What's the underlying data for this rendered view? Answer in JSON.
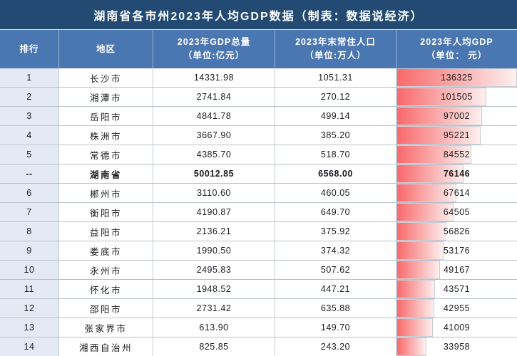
{
  "title": "湖南省各市州2023年人均GDP数据（制表：数据说经济）",
  "table": {
    "columns": [
      {
        "label": "排行",
        "unit": ""
      },
      {
        "label": "地区",
        "unit": ""
      },
      {
        "label": "2023年GDP总量",
        "unit": "（单位:亿元）"
      },
      {
        "label": "2023年末常住人口",
        "unit": "（单位:万人）"
      },
      {
        "label": "2023年人均GDP",
        "unit": "（单位： 元）"
      }
    ],
    "per_capita_max": 136325,
    "rows": [
      {
        "rank": "1",
        "region": "长沙市",
        "gdp": "14331.98",
        "population": "1051.31",
        "per_capita": 136325,
        "emphasis": false
      },
      {
        "rank": "2",
        "region": "湘潭市",
        "gdp": "2741.84",
        "population": "270.12",
        "per_capita": 101505,
        "emphasis": false
      },
      {
        "rank": "3",
        "region": "岳阳市",
        "gdp": "4841.78",
        "population": "499.14",
        "per_capita": 97002,
        "emphasis": false
      },
      {
        "rank": "4",
        "region": "株洲市",
        "gdp": "3667.90",
        "population": "385.20",
        "per_capita": 95221,
        "emphasis": false
      },
      {
        "rank": "5",
        "region": "常德市",
        "gdp": "4385.70",
        "population": "518.70",
        "per_capita": 84552,
        "emphasis": false
      },
      {
        "rank": "--",
        "region": "湖南省",
        "gdp": "50012.85",
        "population": "6568.00",
        "per_capita": 76146,
        "emphasis": true
      },
      {
        "rank": "6",
        "region": "郴州市",
        "gdp": "3110.60",
        "population": "460.05",
        "per_capita": 67614,
        "emphasis": false
      },
      {
        "rank": "7",
        "region": "衡阳市",
        "gdp": "4190.87",
        "population": "649.70",
        "per_capita": 64505,
        "emphasis": false
      },
      {
        "rank": "8",
        "region": "益阳市",
        "gdp": "2136.21",
        "population": "375.92",
        "per_capita": 56826,
        "emphasis": false
      },
      {
        "rank": "9",
        "region": "娄底市",
        "gdp": "1990.50",
        "population": "374.32",
        "per_capita": 53176,
        "emphasis": false
      },
      {
        "rank": "10",
        "region": "永州市",
        "gdp": "2495.83",
        "population": "507.62",
        "per_capita": 49167,
        "emphasis": false
      },
      {
        "rank": "11",
        "region": "怀化市",
        "gdp": "1948.52",
        "population": "447.21",
        "per_capita": 43571,
        "emphasis": false
      },
      {
        "rank": "12",
        "region": "邵阳市",
        "gdp": "2731.42",
        "population": "635.88",
        "per_capita": 42955,
        "emphasis": false
      },
      {
        "rank": "13",
        "region": "张家界市",
        "gdp": "613.90",
        "population": "149.70",
        "per_capita": 41009,
        "emphasis": false
      },
      {
        "rank": "14",
        "region": "湘西自治州",
        "gdp": "825.85",
        "population": "243.20",
        "per_capita": 33958,
        "emphasis": false
      }
    ]
  },
  "chart_data": {
    "type": "table",
    "title": "湖南省各市州2023年人均GDP数据（制表：数据说经济）",
    "columns": [
      "排行",
      "地区",
      "2023年GDP总量（单位:亿元）",
      "2023年末常住人口（单位:万人）",
      "2023年人均GDP（单位：元）"
    ],
    "rows": [
      [
        "1",
        "长沙市",
        14331.98,
        1051.31,
        136325
      ],
      [
        "2",
        "湘潭市",
        2741.84,
        270.12,
        101505
      ],
      [
        "3",
        "岳阳市",
        4841.78,
        499.14,
        97002
      ],
      [
        "4",
        "株洲市",
        3667.9,
        385.2,
        95221
      ],
      [
        "5",
        "常德市",
        4385.7,
        518.7,
        84552
      ],
      [
        "--",
        "湖南省",
        50012.85,
        6568.0,
        76146
      ],
      [
        "6",
        "郴州市",
        3110.6,
        460.05,
        67614
      ],
      [
        "7",
        "衡阳市",
        4190.87,
        649.7,
        64505
      ],
      [
        "8",
        "益阳市",
        2136.21,
        375.92,
        56826
      ],
      [
        "9",
        "娄底市",
        1990.5,
        374.32,
        53176
      ],
      [
        "10",
        "永州市",
        2495.83,
        507.62,
        49167
      ],
      [
        "11",
        "怀化市",
        1948.52,
        447.21,
        43571
      ],
      [
        "12",
        "邵阳市",
        2731.42,
        635.88,
        42955
      ],
      [
        "13",
        "张家界市",
        613.9,
        149.7,
        41009
      ],
      [
        "14",
        "湘西自治州",
        825.85,
        243.2,
        33958
      ]
    ],
    "bar_column": "2023年人均GDP（单位：元）",
    "bar_max": 136325,
    "layout": "data bars rendered behind per-capita GDP values, left-aligned, width proportional to value"
  },
  "colors": {
    "title_bg": "#224a73",
    "header_bg": "#4a76b2",
    "header_text": "#ffffff",
    "rank_column_bg": "#e3eaf4",
    "bar_gradient_start": "#f8696b",
    "bar_gradient_end": "#fdf0ef",
    "grid_line": "#b9c1cc",
    "body_text": "#1c1c1c"
  }
}
